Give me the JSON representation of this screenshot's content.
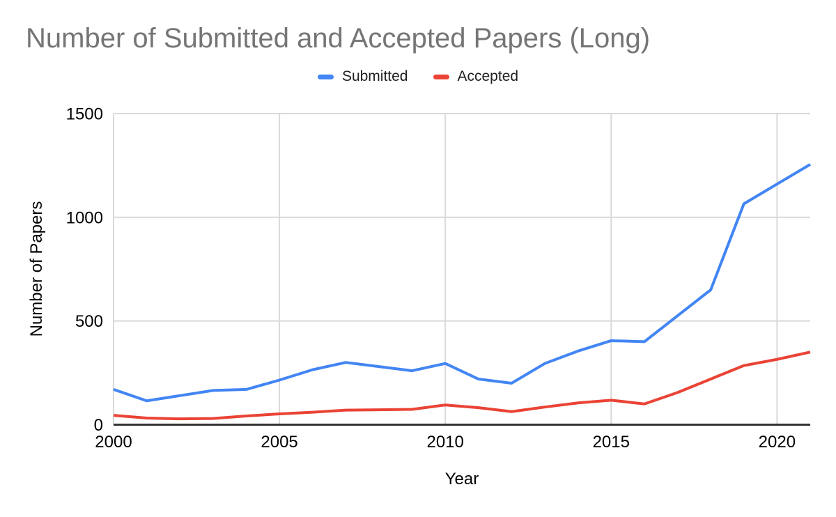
{
  "chart_data": {
    "type": "line",
    "title": "Number of Submitted and Accepted Papers (Long)",
    "xlabel": "Year",
    "ylabel": "Number of Papers",
    "x": [
      2000,
      2001,
      2002,
      2003,
      2004,
      2005,
      2006,
      2007,
      2008,
      2009,
      2010,
      2011,
      2012,
      2013,
      2014,
      2015,
      2016,
      2017,
      2018,
      2019,
      2020,
      2021
    ],
    "series": [
      {
        "name": "Submitted",
        "color": "#4285f4",
        "values": [
          170,
          115,
          140,
          165,
          170,
          215,
          265,
          300,
          280,
          260,
          295,
          220,
          200,
          295,
          355,
          405,
          400,
          525,
          650,
          1065,
          1160,
          1255
        ]
      },
      {
        "name": "Accepted",
        "color": "#ea4335",
        "values": [
          45,
          32,
          28,
          30,
          42,
          52,
          60,
          70,
          72,
          74,
          95,
          82,
          63,
          85,
          105,
          118,
          100,
          155,
          220,
          285,
          315,
          350
        ]
      }
    ],
    "xlim": [
      2000,
      2021
    ],
    "ylim": [
      0,
      1500
    ],
    "xticks": [
      2000,
      2005,
      2010,
      2015,
      2020
    ],
    "yticks": [
      0,
      500,
      1000,
      1500
    ],
    "grid": true,
    "legend_position": "top",
    "gridline_color": "#d9d9d9",
    "axis_color": "#333333",
    "title_color": "#757575"
  }
}
